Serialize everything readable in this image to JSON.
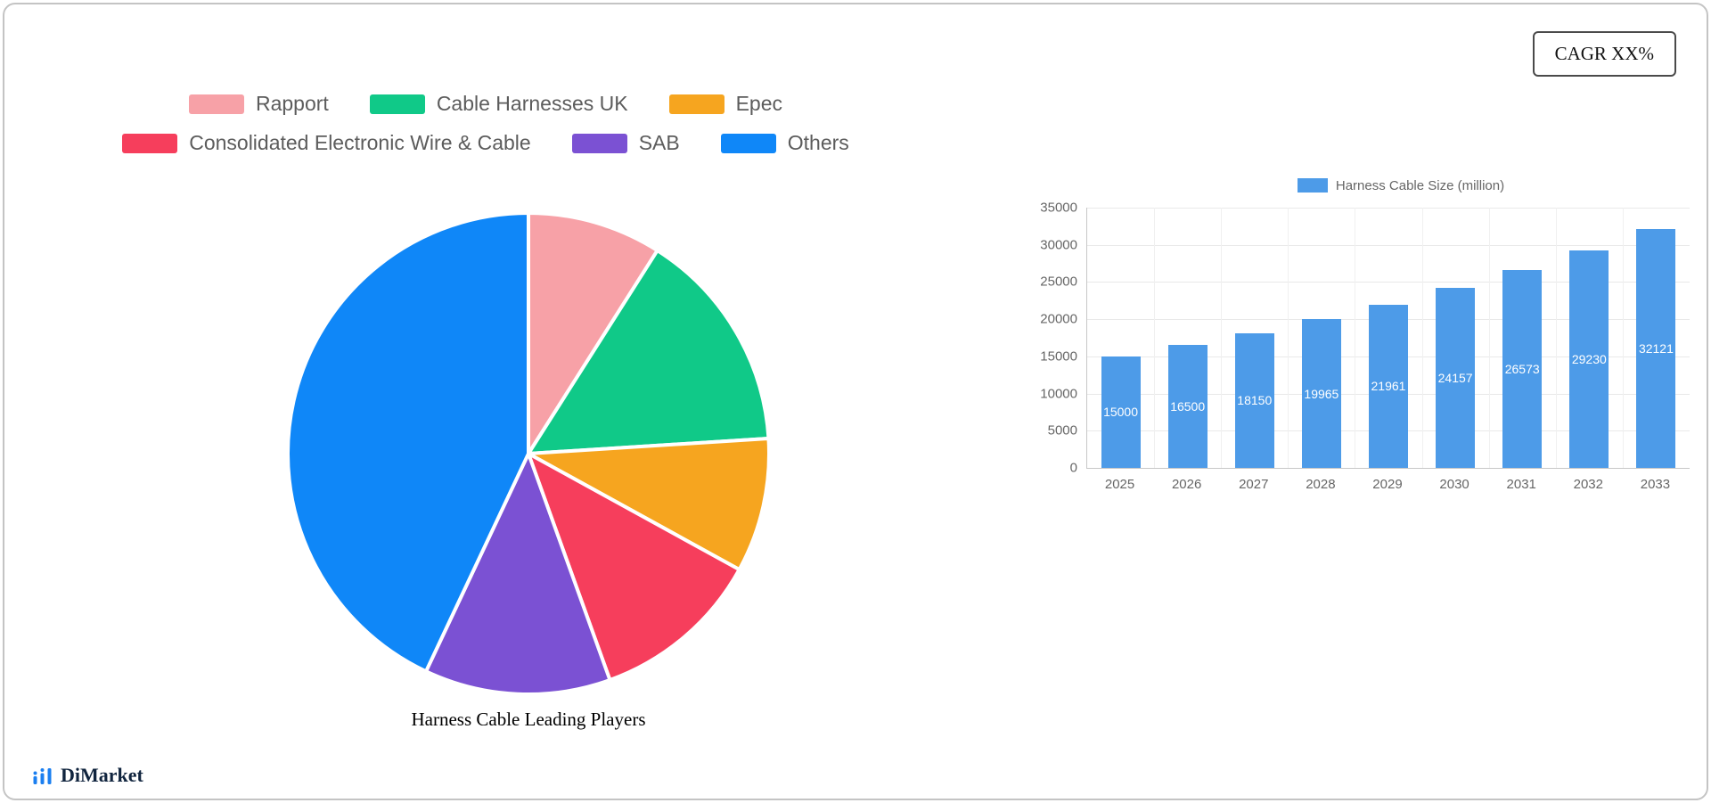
{
  "frame": {
    "cagr_label": "CAGR XX%"
  },
  "logo": {
    "text": "DiMarket"
  },
  "legend": {
    "rows": [
      [
        {
          "label": "Rapport",
          "color": "#F7A1A7"
        },
        {
          "label": "Cable Harnesses UK",
          "color": "#10C988"
        },
        {
          "label": "Epec",
          "color": "#F6A51F"
        }
      ],
      [
        {
          "label": "Consolidated Electronic Wire & Cable",
          "color": "#F63E5C"
        },
        {
          "label": "SAB",
          "color": "#7B51D3"
        },
        {
          "label": "Others",
          "color": "#0F87F8"
        }
      ]
    ]
  },
  "chart_data": [
    {
      "type": "pie",
      "title": "Harness Cable Leading Players",
      "labels": [
        "Rapport",
        "Cable Harnesses UK",
        "Epec",
        "Consolidated Electronic Wire & Cable",
        "SAB",
        "Others"
      ],
      "values": [
        9,
        15,
        9,
        11.5,
        12.5,
        43
      ],
      "unit": "percent-estimated-from-slice-angles",
      "colors": [
        "#F7A1A7",
        "#10C988",
        "#F6A51F",
        "#F63E5C",
        "#7B51D3",
        "#0F87F8"
      ],
      "start_angle_deg": 0,
      "direction": "clockwise",
      "slice_border_color": "#ffffff",
      "legend_position": "top"
    },
    {
      "type": "bar",
      "categories": [
        "2025",
        "2026",
        "2027",
        "2028",
        "2029",
        "2030",
        "2031",
        "2032",
        "2033"
      ],
      "series": [
        {
          "name": "Harness Cable Size (million)",
          "values": [
            15000,
            16500,
            18150,
            19965,
            21961,
            24157,
            26573,
            29230,
            32121
          ]
        }
      ],
      "ylim": [
        0,
        35000
      ],
      "ytick_step": 5000,
      "yticks": [
        0,
        5000,
        10000,
        15000,
        20000,
        25000,
        30000,
        35000
      ],
      "bar_color": "#4D9BE8",
      "value_label_style": "white, centered inside bar",
      "grid": true,
      "legend_position": "top"
    }
  ]
}
